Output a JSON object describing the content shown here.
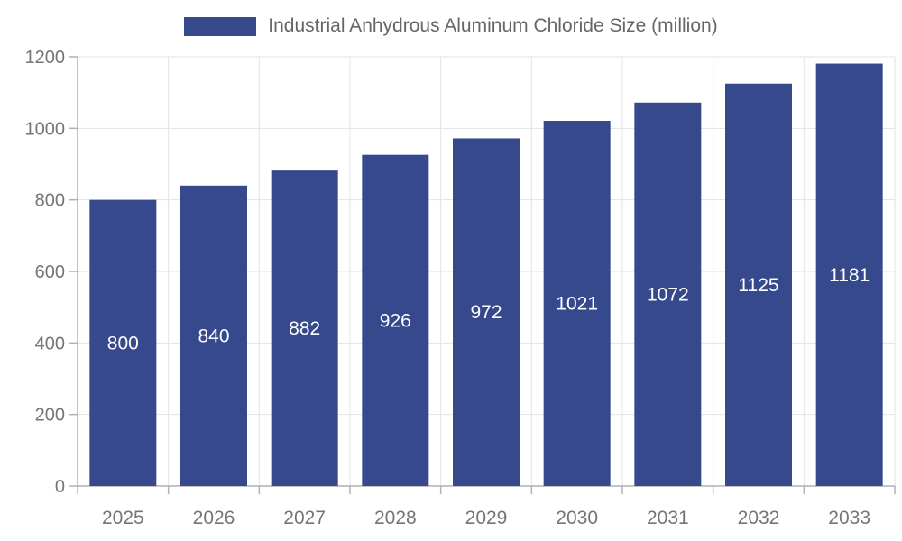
{
  "legend": {
    "label": "Industrial Anhydrous Aluminum Chloride Size (million)"
  },
  "colors": {
    "bar": "#36498C",
    "grid": "#e3e3e3",
    "axis": "#b1b1b1",
    "tick_text": "#757575",
    "legend_text": "#666666",
    "value_text": "#ffffff",
    "background": "#ffffff"
  },
  "chart_data": {
    "type": "bar",
    "title": "",
    "legend": "Industrial Anhydrous Aluminum Chloride Size (million)",
    "legend_position": "top-center",
    "categories": [
      "2025",
      "2026",
      "2027",
      "2028",
      "2029",
      "2030",
      "2031",
      "2032",
      "2033"
    ],
    "values": [
      800,
      840,
      882,
      926,
      972,
      1021,
      1072,
      1125,
      1181
    ],
    "xlabel": "",
    "ylabel": "",
    "ylim": [
      0,
      1200
    ],
    "yticks": [
      0,
      200,
      400,
      600,
      800,
      1000,
      1200
    ],
    "grid": true,
    "value_labels": "inside-center-white"
  }
}
